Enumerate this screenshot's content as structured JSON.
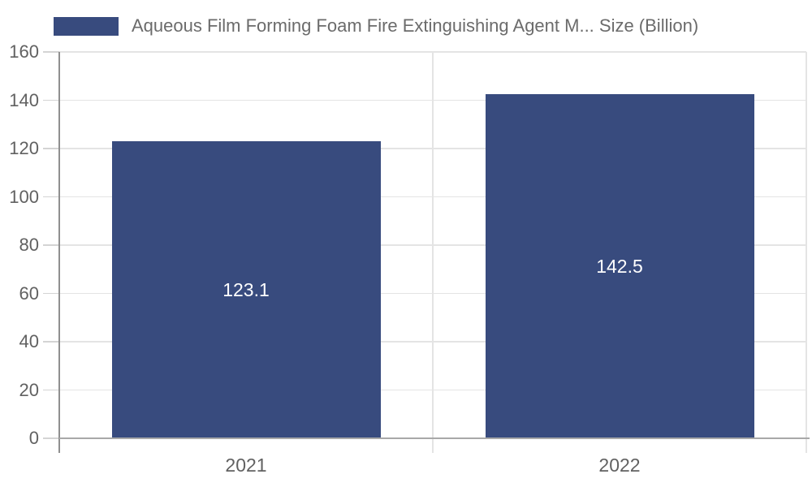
{
  "chart_data": {
    "type": "bar",
    "title": "",
    "legend_label": "Aqueous Film Forming Foam Fire Extinguishing Agent M... Size (Billion)",
    "series": [
      {
        "name": "Aqueous Film Forming Foam Fire Extinguishing Agent M... Size (Billion)",
        "values": [
          123.1,
          142.5
        ]
      }
    ],
    "categories": [
      "2021",
      "2022"
    ],
    "value_labels": [
      "123.1",
      "142.5"
    ],
    "xlabel": "",
    "ylabel": "",
    "ylim": [
      0,
      160
    ],
    "ytick_step": 20,
    "ytick_labels": [
      "0",
      "20",
      "40",
      "60",
      "80",
      "100",
      "120",
      "140",
      "160"
    ],
    "grid": true,
    "legend_position": "top-left",
    "colors": {
      "bar": "#384B7E",
      "bar_value_label": "#ffffff",
      "axis_text": "#616161",
      "grid_line": "#e4e4e4",
      "y_axis_line": "#8f8f8f",
      "x_axis_line": "#a8a8a8",
      "tick_mark": "#d4d4d4",
      "background": "#ffffff"
    }
  }
}
